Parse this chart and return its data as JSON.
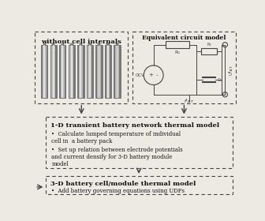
{
  "bg_color": "#ede9e3",
  "title_top_left": "without cell internals",
  "title_top_right": "Equivalent circuit model",
  "box3_title": "1-D transient battery network thermal model",
  "box3_bullet1": "Calculate lumped temperature of individual\ncell in  a battery pack",
  "box3_bullet2": "Set up relation between electrode potentials\nand current densify for 3-D battery module\nmodel",
  "box4_title": "3-D battery cell/module thermal model",
  "box4_bullet1": "Add battery governing equations using UDFs",
  "num_cells": 9,
  "line_color": "#444444",
  "text_color": "#111111"
}
